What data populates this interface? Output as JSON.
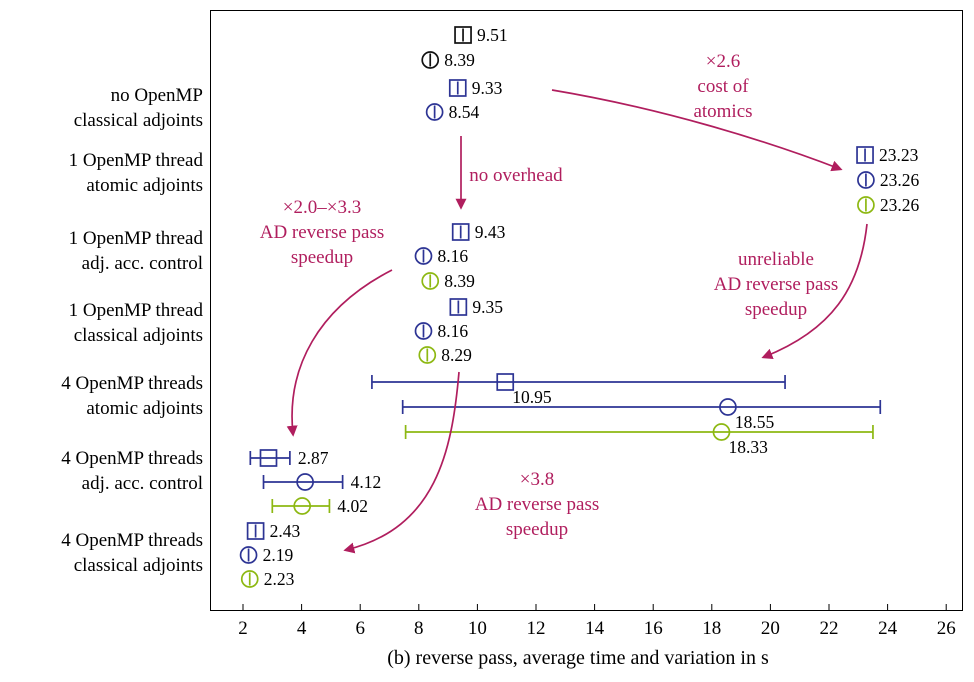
{
  "colors": {
    "black": "#111111",
    "blue": "#2d3494",
    "green": "#8db812",
    "annotation": "#b01e5e"
  },
  "chart_data": {
    "type": "scatter",
    "xlabel": "(b) reverse pass, average time and variation in s",
    "xlim": [
      0.9,
      26.6
    ],
    "x_ticks": [
      2,
      4,
      6,
      8,
      10,
      12,
      14,
      16,
      18,
      20,
      22,
      24,
      26
    ],
    "grid": false,
    "legend_position": "none",
    "groups": [
      {
        "label": [
          "no OpenMP",
          "classical adjoints"
        ],
        "points": [
          {
            "marker": "square",
            "color": "black",
            "value": 9.51
          },
          {
            "marker": "circle",
            "color": "black",
            "value": 8.39
          },
          {
            "marker": "square",
            "color": "blue",
            "value": 9.33
          },
          {
            "marker": "circle",
            "color": "blue",
            "value": 8.54
          }
        ]
      },
      {
        "label": [
          "1 OpenMP thread",
          "atomic adjoints"
        ],
        "points": [
          {
            "marker": "square",
            "color": "blue",
            "value": 23.23
          },
          {
            "marker": "circle",
            "color": "blue",
            "value": 23.26
          },
          {
            "marker": "circle",
            "color": "green",
            "value": 23.26
          }
        ]
      },
      {
        "label": [
          "1 OpenMP thread",
          "adj. acc. control"
        ],
        "points": [
          {
            "marker": "square",
            "color": "blue",
            "value": 9.43
          },
          {
            "marker": "circle",
            "color": "blue",
            "value": 8.16
          },
          {
            "marker": "circle",
            "color": "green",
            "value": 8.39
          }
        ]
      },
      {
        "label": [
          "1 OpenMP thread",
          "classical adjoints"
        ],
        "points": [
          {
            "marker": "square",
            "color": "blue",
            "value": 9.35
          },
          {
            "marker": "circle",
            "color": "blue",
            "value": 8.16
          },
          {
            "marker": "circle",
            "color": "green",
            "value": 8.29
          }
        ]
      },
      {
        "label": [
          "4 OpenMP threads",
          "atomic adjoints"
        ],
        "points": [
          {
            "marker": "square",
            "color": "blue",
            "value": 10.95,
            "range": [
              6.4,
              20.5
            ],
            "label_below": true
          },
          {
            "marker": "circle",
            "color": "blue",
            "value": 18.55,
            "range": [
              7.45,
              23.75
            ],
            "label_below": true
          },
          {
            "marker": "circle",
            "color": "green",
            "value": 18.33,
            "range": [
              7.55,
              23.5
            ],
            "label_below": true
          }
        ]
      },
      {
        "label": [
          "4 OpenMP threads",
          "adj. acc. control"
        ],
        "points": [
          {
            "marker": "square",
            "color": "blue",
            "value": 2.87,
            "range": [
              2.25,
              3.6
            ]
          },
          {
            "marker": "circle",
            "color": "blue",
            "value": 4.12,
            "range": [
              2.7,
              5.4
            ]
          },
          {
            "marker": "circle",
            "color": "green",
            "value": 4.02,
            "range": [
              3.0,
              4.95
            ]
          }
        ]
      },
      {
        "label": [
          "4 OpenMP threads",
          "classical adjoints"
        ],
        "points": [
          {
            "marker": "square",
            "color": "blue",
            "value": 2.43
          },
          {
            "marker": "circle",
            "color": "blue",
            "value": 2.19
          },
          {
            "marker": "circle",
            "color": "green",
            "value": 2.23
          }
        ]
      }
    ],
    "annotations": [
      {
        "lines": [
          "×2.6",
          "cost of",
          "atomics"
        ]
      },
      {
        "lines": [
          "no overhead"
        ]
      },
      {
        "lines": [
          "×2.0–×3.3",
          "AD reverse pass",
          "speedup"
        ]
      },
      {
        "lines": [
          "unreliable",
          "AD reverse pass",
          "speedup"
        ]
      },
      {
        "lines": [
          "×3.8",
          "AD reverse pass",
          "speedup"
        ]
      }
    ]
  }
}
